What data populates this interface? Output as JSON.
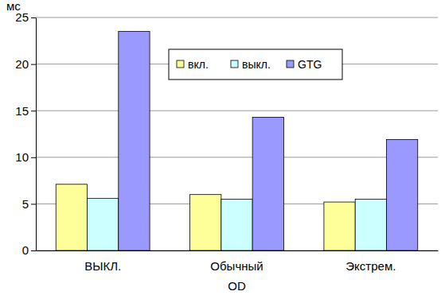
{
  "chart_data": {
    "type": "bar",
    "y_label": "мс",
    "x_label": "OD",
    "categories": [
      "ВЫКЛ.",
      "Обычный",
      "Экстрем."
    ],
    "series": [
      {
        "name": "вкл.",
        "color": "#ffff99",
        "values": [
          7.1,
          6.0,
          5.2
        ]
      },
      {
        "name": "выкл.",
        "color": "#ccffff",
        "values": [
          5.6,
          5.5,
          5.5
        ]
      },
      {
        "name": "GTG",
        "color": "#9999ff",
        "values": [
          23.5,
          14.3,
          11.9
        ]
      }
    ],
    "ylim": [
      0,
      25
    ],
    "yticks": [
      0,
      5,
      10,
      15,
      20,
      25
    ],
    "grid": true,
    "legend": "top"
  }
}
